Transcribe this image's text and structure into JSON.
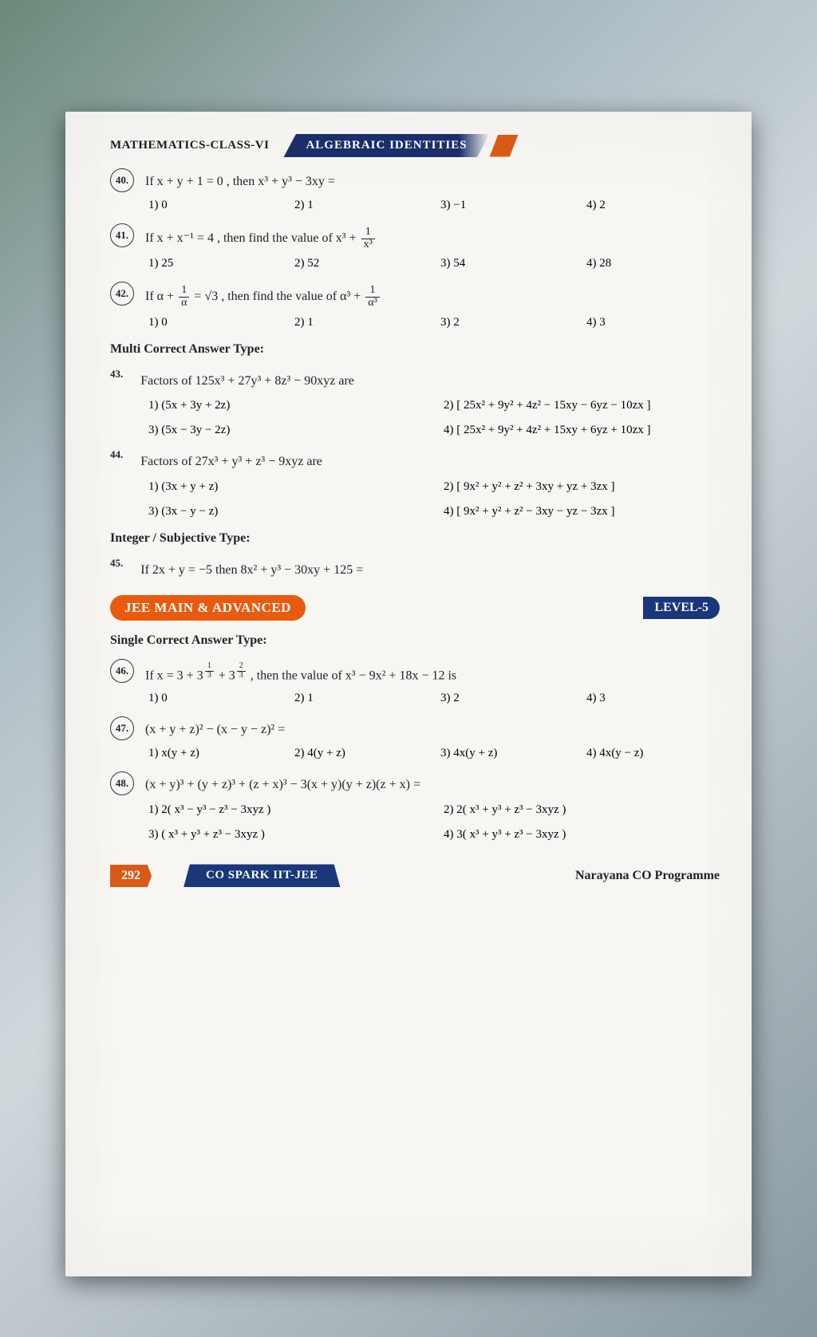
{
  "colors": {
    "page_bg": "#f8f6f2",
    "blue_banner": "#1a2e6a",
    "orange": "#d95a17",
    "orange_badge": "#e85a0f",
    "text": "#222222"
  },
  "header": {
    "subject": "MATHEMATICS-CLASS-VI",
    "topic": "ALGEBRAIC IDENTITIES"
  },
  "q40": {
    "num": "40.",
    "text": "If  x + y + 1 = 0 , then  x³ + y³ − 3xy =",
    "o1": "1) 0",
    "o2": "2) 1",
    "o3": "3) −1",
    "o4": "4) 2"
  },
  "q41": {
    "num": "41.",
    "text_a": "If  x + x⁻¹ = 4 , then find the value of  x³ + ",
    "frac_n": "1",
    "frac_d": "x³",
    "o1": "1) 25",
    "o2": "2) 52",
    "o3": "3) 54",
    "o4": "4) 28"
  },
  "q42": {
    "num": "42.",
    "text_a": "If  α + ",
    "f1n": "1",
    "f1d": "α",
    "text_b": " = √3 , then find the value of  α³ + ",
    "f2n": "1",
    "f2d": "α³",
    "o1": "1) 0",
    "o2": "2) 1",
    "o3": "3) 2",
    "o4": "4) 3"
  },
  "multi_head": "Multi Correct Answer Type:",
  "q43": {
    "num": "43.",
    "text": "Factors of  125x³ + 27y³ + 8z³ − 90xyz  are",
    "o1": "1) (5x + 3y + 2z)",
    "o2": "2) [ 25x² + 9y² + 4z² − 15xy − 6yz − 10zx ]",
    "o3": "3) (5x − 3y − 2z)",
    "o4": "4) [ 25x² + 9y² + 4z² + 15xy + 6yz + 10zx ]"
  },
  "q44": {
    "num": "44.",
    "text": "Factors of  27x³ + y³ + z³ − 9xyz  are",
    "o1": "1) (3x + y + z)",
    "o2": "2) [ 9x² + y² + z² + 3xy + yz + 3zx ]",
    "o3": "3) (3x − y − z)",
    "o4": "4) [ 9x² + y² + z² − 3xy − yz − 3zx ]"
  },
  "int_head": "Integer / Subjective Type:",
  "q45": {
    "num": "45.",
    "text": "If  2x + y = −5  then  8x² + y³ − 30xy + 125 ="
  },
  "jee": "JEE MAIN & ADVANCED",
  "level": "LEVEL-5",
  "single_head": "Single Correct Answer Type:",
  "q46": {
    "num": "46.",
    "text_a": "If  x = 3 + 3",
    "e1n": "1",
    "e1d": "3",
    "text_b": " + 3",
    "e2n": "2",
    "e2d": "3",
    "text_c": " , then the value of  x³ − 9x² + 18x − 12  is",
    "o1": "1) 0",
    "o2": "2) 1",
    "o3": "3) 2",
    "o4": "4) 3"
  },
  "q47": {
    "num": "47.",
    "text": "(x + y + z)² − (x − y − z)² =",
    "o1": "1) x(y + z)",
    "o2": "2) 4(y + z)",
    "o3": "3) 4x(y + z)",
    "o4": "4) 4x(y − z)"
  },
  "q48": {
    "num": "48.",
    "text": "(x + y)³ + (y + z)³ + (z + x)³ − 3(x + y)(y + z)(z + x) =",
    "o1": "1) 2( x³ − y³ − z³ − 3xyz )",
    "o2": "2) 2( x³ + y³ + z³ − 3xyz )",
    "o3": "3) ( x³ + y³ + z³ − 3xyz )",
    "o4": "4) 3( x³ + y³ + z³ − 3xyz )"
  },
  "footer": {
    "page": "292",
    "center": "CO SPARK IIT-JEE",
    "right": "Narayana CO Programme"
  }
}
